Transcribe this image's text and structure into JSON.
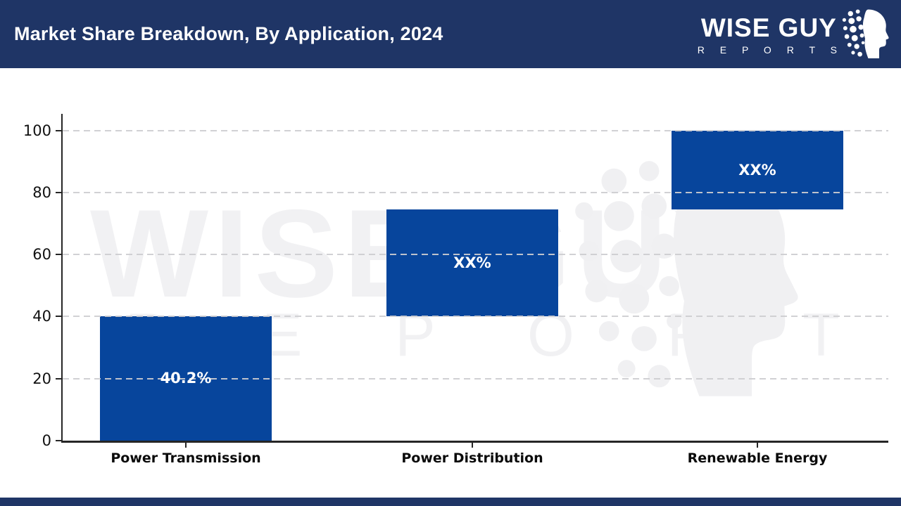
{
  "header": {
    "title": "Market Share Breakdown, By Application, 2024",
    "bg_color": "#1f3566",
    "logo": {
      "wordmark": "WISE GUY",
      "reports_line": "R E P O R T S"
    }
  },
  "watermark": {
    "line1": "WISE GUY",
    "line2": "R E P O R T S"
  },
  "chart_data": {
    "type": "bar",
    "subtype": "waterfall",
    "title": "Market Share Breakdown, By Application, 2024",
    "categories": [
      "Power Transmission",
      "Power Distribution",
      "Renewable Energy"
    ],
    "segments": [
      {
        "category": "Power Transmission",
        "start": 0,
        "end": 40.2,
        "label": "40.2%"
      },
      {
        "category": "Power Distribution",
        "start": 40.2,
        "end": 74.5,
        "label": "XX%"
      },
      {
        "category": "Renewable Energy",
        "start": 74.5,
        "end": 100,
        "label": "XX%"
      }
    ],
    "xlabel": "",
    "ylabel": "",
    "yticks": [
      0,
      20,
      40,
      60,
      80,
      100
    ],
    "ylim": [
      0,
      106
    ],
    "grid": "horizontal-dashed",
    "grid_color": "#d8d8d8",
    "bar_color": "#07459c",
    "bar_label_color": "#ffffff",
    "legend": "none"
  },
  "footer": {
    "bg_color": "#1f3566"
  }
}
